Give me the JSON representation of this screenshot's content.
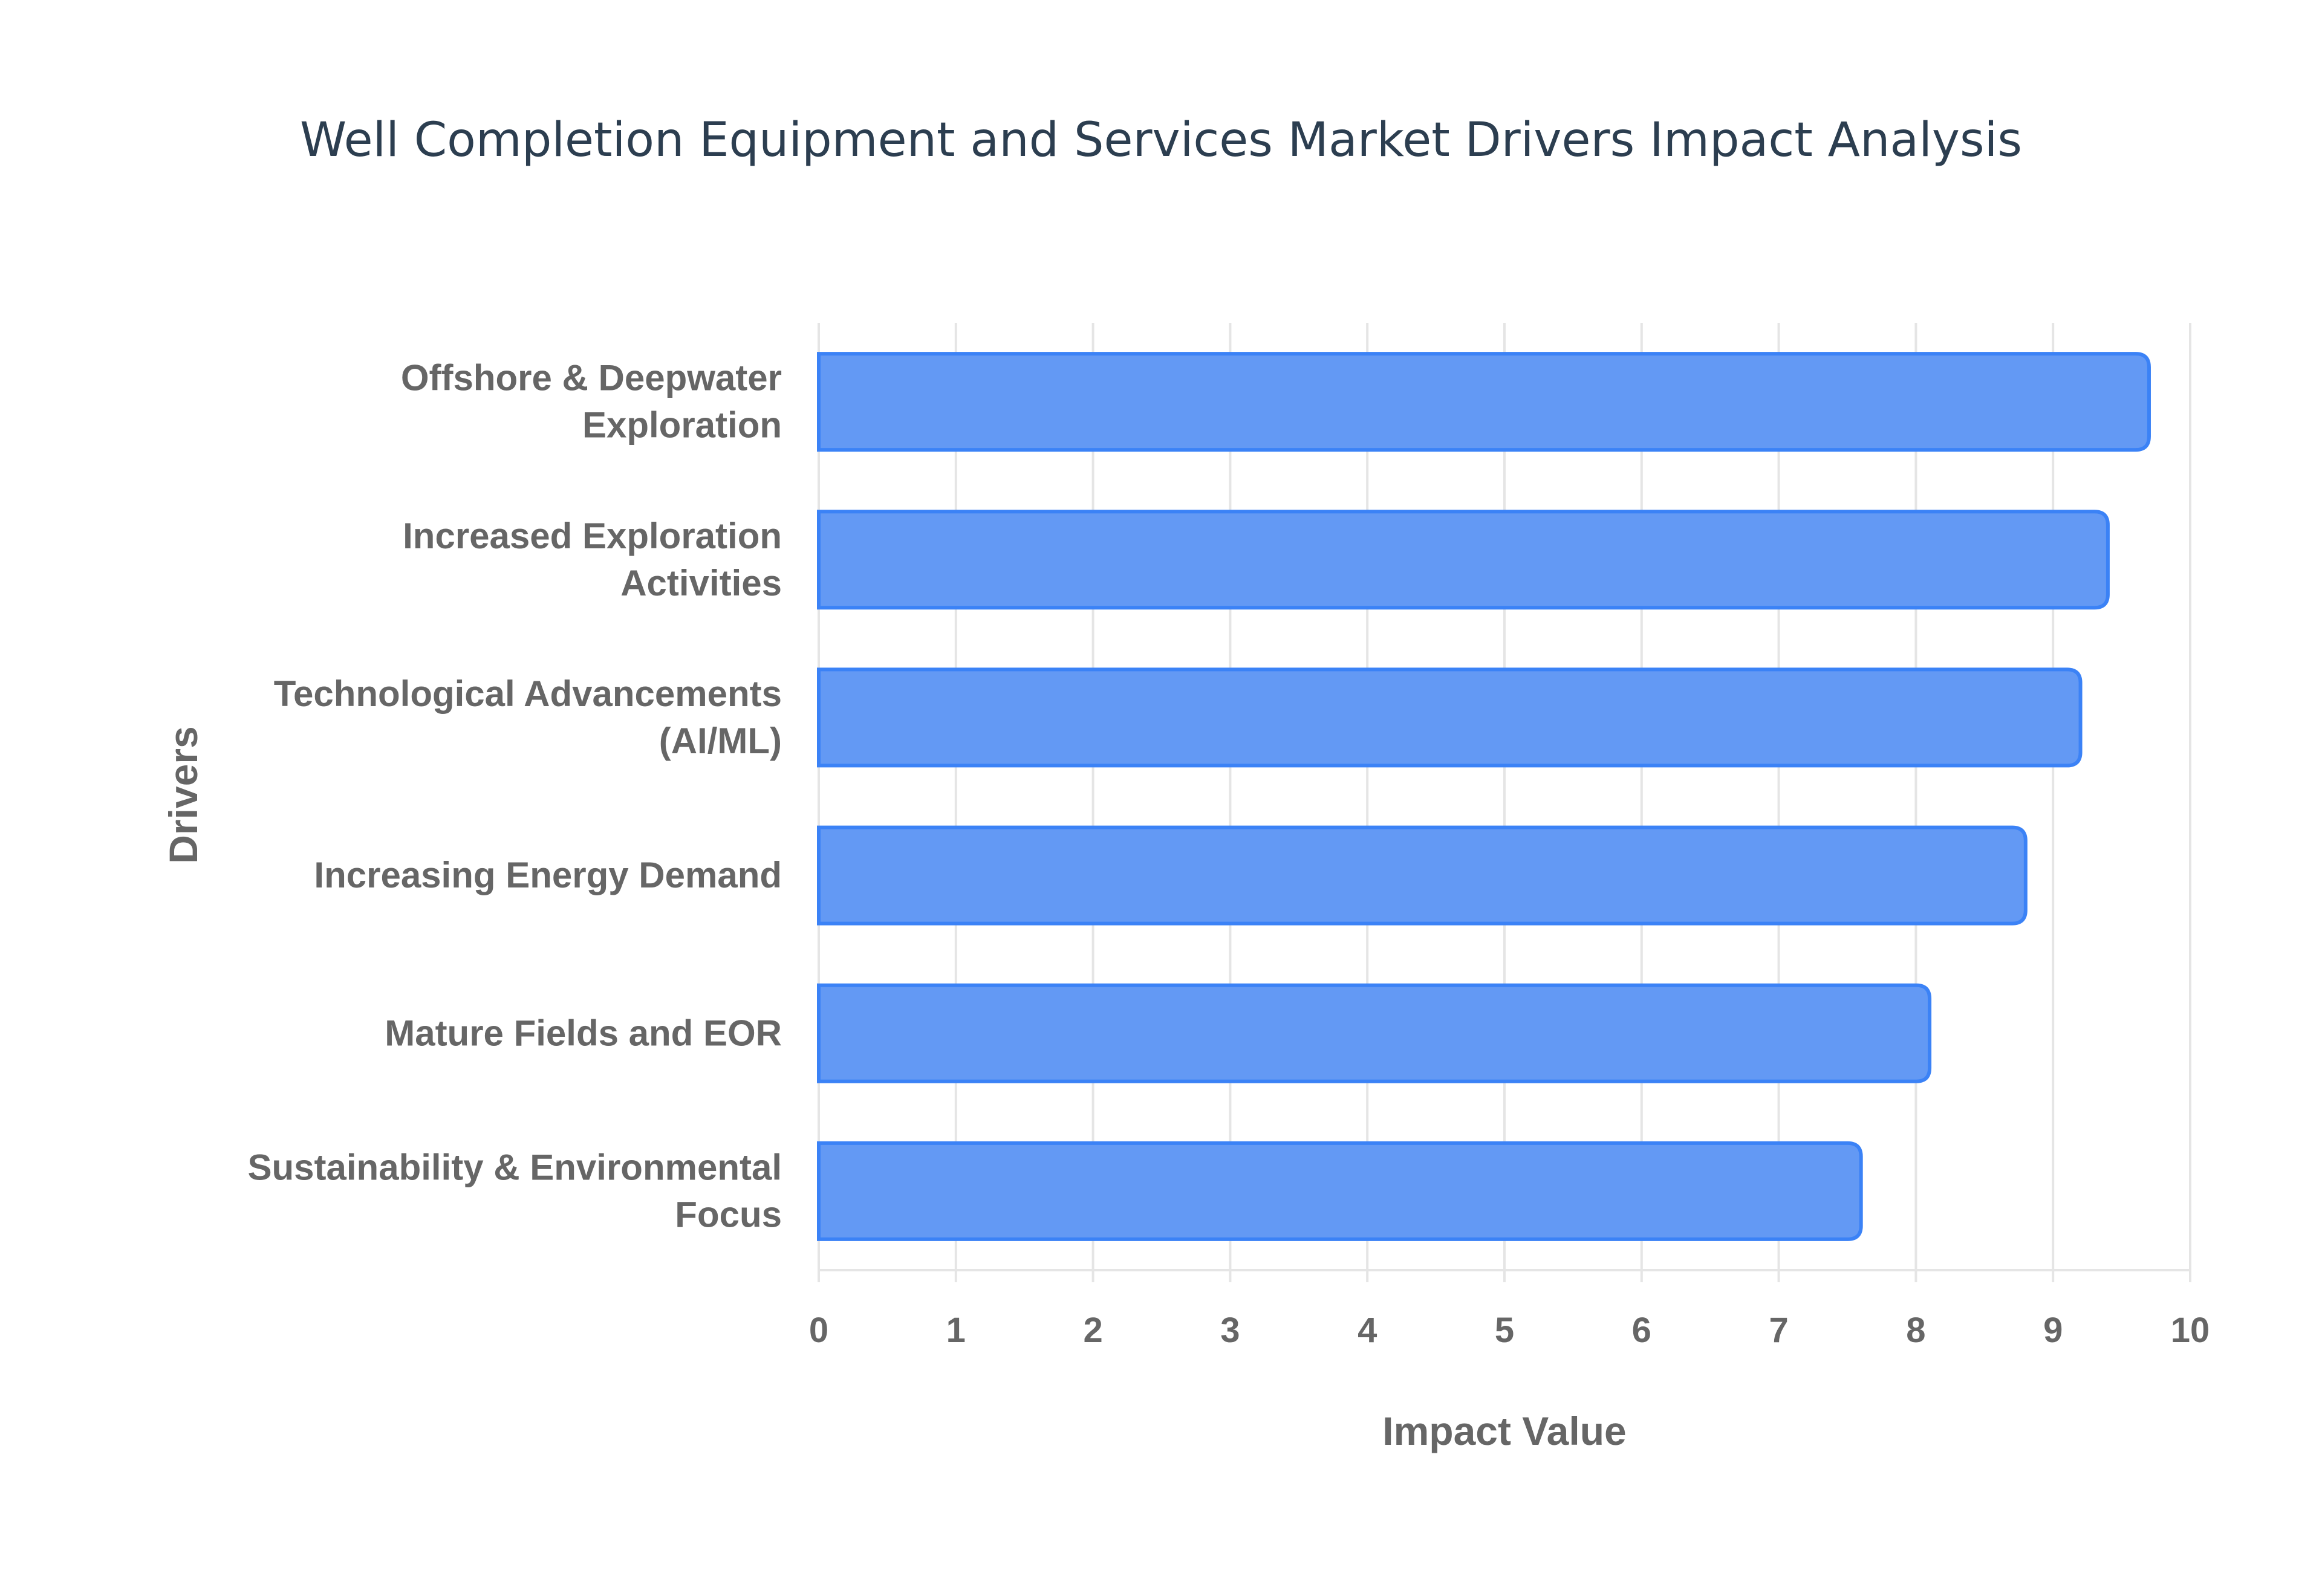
{
  "chart_data": {
    "type": "bar",
    "orientation": "horizontal",
    "title": "Well Completion Equipment and Services Market Drivers Impact Analysis",
    "xlabel": "Impact Value",
    "ylabel": "Drivers",
    "categories": [
      [
        "Offshore & Deepwater",
        "Exploration"
      ],
      [
        "Increased Exploration",
        "Activities"
      ],
      [
        "Technological Advancements",
        "(AI/ML)"
      ],
      [
        "Increasing Energy Demand"
      ],
      [
        "Mature Fields and EOR"
      ],
      [
        "Sustainability & Environmental",
        "Focus"
      ]
    ],
    "values": [
      9.7,
      9.4,
      9.2,
      8.8,
      8.1,
      7.6
    ],
    "xlim": [
      0,
      10
    ],
    "xticks": [
      "0",
      "1",
      "2",
      "3",
      "4",
      "5",
      "6",
      "7",
      "8",
      "9",
      "10"
    ],
    "grid": true,
    "colors": {
      "bar_fill": "#6399f4",
      "bar_border": "#3b82f6",
      "grid": "#e5e5e5",
      "title": "#2c3e50",
      "text": "#666666"
    }
  }
}
